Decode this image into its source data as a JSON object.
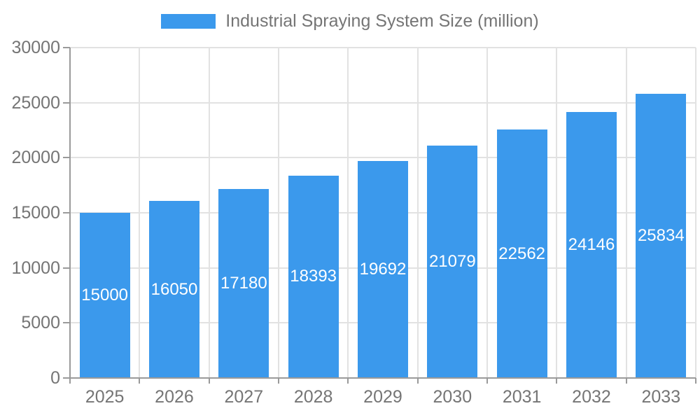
{
  "legend": {
    "label": "Industrial Spraying System Size (million)"
  },
  "colors": {
    "bar": "#3B99EC",
    "bar_label_text": "#FFFFFF",
    "axis_line": "#9A9A9A",
    "grid_line": "#E2E2E2",
    "tick_label_text": "#757575",
    "legend_text": "#757575",
    "background": "#FFFFFF"
  },
  "chart_data": {
    "type": "bar",
    "title": "Industrial Spraying System Size (million)",
    "categories": [
      "2025",
      "2026",
      "2027",
      "2028",
      "2029",
      "2030",
      "2031",
      "2032",
      "2033"
    ],
    "values": [
      15000,
      16050,
      17180,
      18393,
      19692,
      21079,
      22562,
      24146,
      25834
    ],
    "xlabel": "",
    "ylabel": "",
    "ylim": [
      0,
      30000
    ],
    "yticks": [
      0,
      5000,
      10000,
      15000,
      20000,
      25000,
      30000
    ],
    "grid": true,
    "legend_position": "top",
    "value_label_position": "inside-center"
  }
}
